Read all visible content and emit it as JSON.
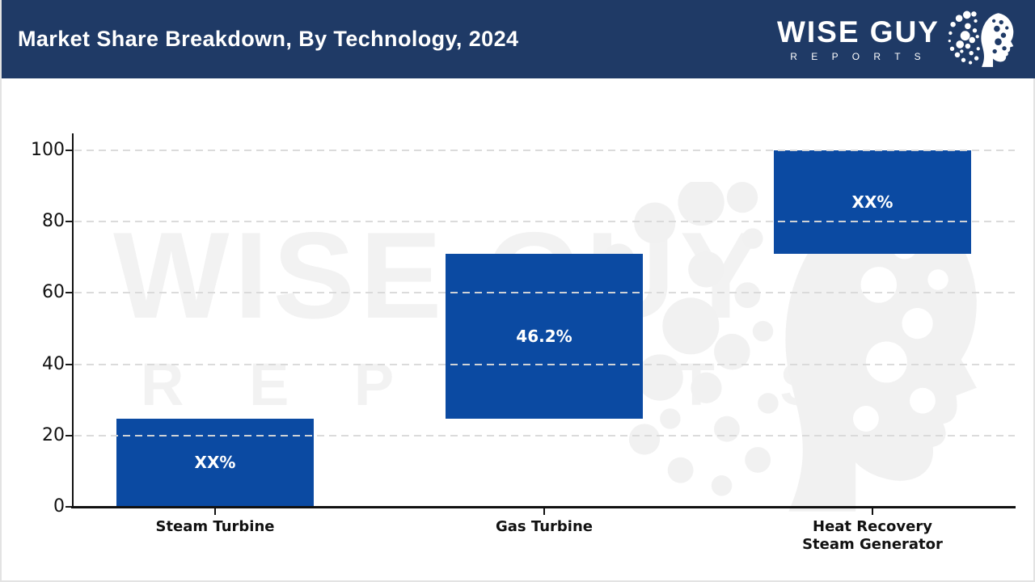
{
  "header": {
    "title": "Market Share Breakdown, By Technology, 2024",
    "background_color": "#1f3a66",
    "logo": {
      "wordmark": "WISE GUY",
      "subtitle": "R E P O R T S"
    }
  },
  "watermark": {
    "line1": "WISE GUY",
    "line2": "R E P O R T S"
  },
  "chart_data": {
    "type": "bar",
    "subtype": "floating-stacked-waterfall",
    "title": "Market Share Breakdown, By Technology, 2024",
    "categories": [
      "Steam Turbine",
      "Gas Turbine",
      "Heat Recovery Steam Generator"
    ],
    "category_label_lines": [
      [
        "Steam Turbine"
      ],
      [
        "Gas Turbine"
      ],
      [
        "Heat Recovery",
        "Steam Generator"
      ]
    ],
    "segments": [
      {
        "category": "Steam Turbine",
        "start": 0,
        "end": 24.8,
        "label": "XX%"
      },
      {
        "category": "Gas Turbine",
        "start": 24.8,
        "end": 71,
        "label": "46.2%"
      },
      {
        "category": "Heat Recovery Steam Generator",
        "start": 71,
        "end": 100,
        "label": "XX%"
      }
    ],
    "yticks": [
      0,
      20,
      40,
      60,
      80,
      100
    ],
    "ylim": [
      0,
      104.5
    ],
    "xlabel": "",
    "ylabel": "",
    "bar_color": "#0b4aa2",
    "bar_label_color": "#ffffff",
    "axis_color": "#111111",
    "grid": {
      "axis": "y",
      "style": "dashed",
      "color": "#d9d9d9"
    },
    "legend": "none"
  }
}
